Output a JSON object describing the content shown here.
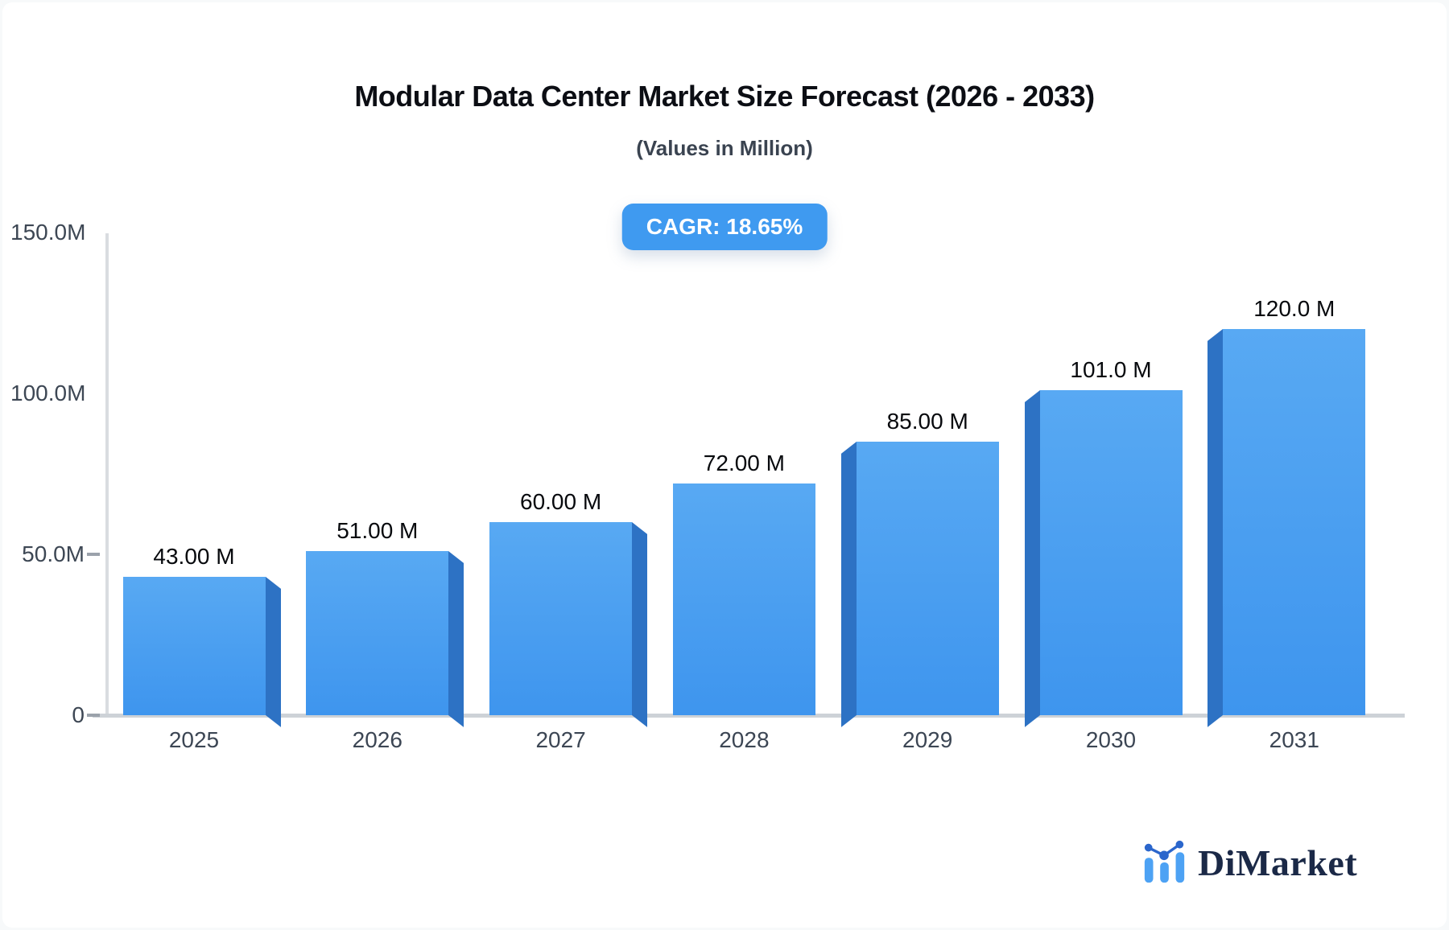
{
  "header": {
    "title": "Modular Data Center Market Size Forecast (2026 - 2033)",
    "subtitle": "(Values in Million)",
    "cagr_badge": "CAGR: 18.65%",
    "badge_color": "#3f9af0"
  },
  "logo": {
    "text": "DiMarket",
    "icon": "bar-chart-trend-icon",
    "icon_bar_color": "#4da2f4",
    "icon_dot_color": "#2b66cc",
    "text_color": "#1b2947"
  },
  "chart_data": {
    "type": "bar",
    "title": "Modular Data Center Market Size Forecast (2026 - 2033)",
    "subtitle": "(Values in Million)",
    "unit": "Million",
    "categories": [
      "2025",
      "2026",
      "2027",
      "2028",
      "2029",
      "2030",
      "2031"
    ],
    "values": [
      43,
      51,
      60,
      72,
      85,
      101,
      120
    ],
    "value_labels": [
      "43.00 M",
      "51.00 M",
      "60.00 M",
      "72.00 M",
      "85.00 M",
      "101.0 M",
      "120.0 M"
    ],
    "xlabel": "",
    "ylabel": "",
    "ylim": [
      0,
      150
    ],
    "grid": false,
    "legend": false,
    "y_ticks": [
      {
        "label": "150.0M",
        "value": 150,
        "dash": false
      },
      {
        "label": "100.0M",
        "value": 100,
        "dash": false
      },
      {
        "label": "50.0M",
        "value": 50,
        "dash": true
      },
      {
        "label": "0",
        "value": 0,
        "dash": true
      }
    ],
    "bar_color_top": "#58a9f3",
    "bar_color_bottom": "#3e95ee",
    "bar_side_color": "#2d72c4"
  }
}
